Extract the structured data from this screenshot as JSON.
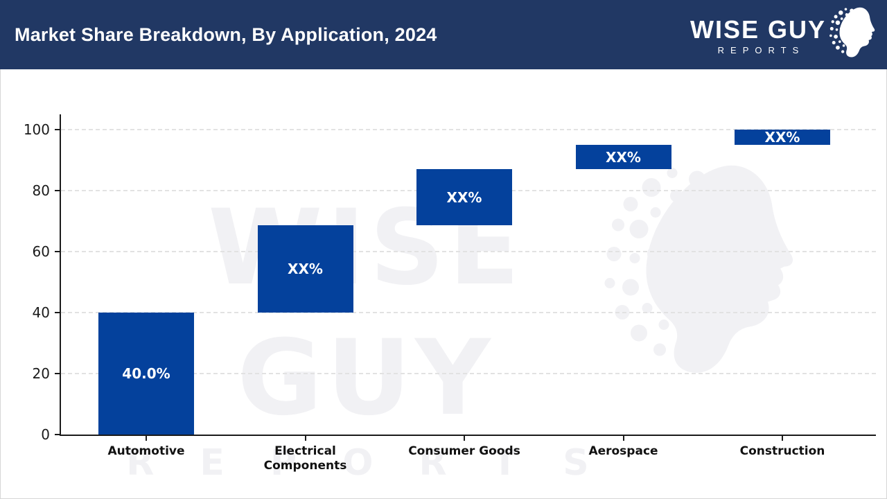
{
  "header": {
    "title": "Market Share Breakdown, By Application, 2024",
    "logo": {
      "line1": "WISE GUY",
      "line2": "REPORTS"
    },
    "background_color": "#213864",
    "text_color": "#ffffff"
  },
  "watermark": {
    "line1": "WISE GUY",
    "line2": "R E P O R T S",
    "color": "#f1f1f4"
  },
  "chart_data": {
    "type": "bar",
    "subtype": "waterfall",
    "title": "Market Share Breakdown, By Application, 2024",
    "categories": [
      "Automotive",
      "Electrical Components",
      "Consumer Goods",
      "Aerospace",
      "Construction"
    ],
    "segments": [
      {
        "category": "Automotive",
        "start": 0,
        "end": 40,
        "label": "40.0%"
      },
      {
        "category": "Electrical Components",
        "start": 40,
        "end": 68.6,
        "label": "XX%"
      },
      {
        "category": "Consumer Goods",
        "start": 68.6,
        "end": 87,
        "label": "XX%"
      },
      {
        "category": "Aerospace",
        "start": 87,
        "end": 95,
        "label": "XX%"
      },
      {
        "category": "Construction",
        "start": 95,
        "end": 100,
        "label": "XX%"
      }
    ],
    "y_ticks": [
      0,
      20,
      40,
      60,
      80,
      100
    ],
    "ylim": [
      0,
      105
    ],
    "xlabel": "",
    "ylabel": "",
    "grid": true,
    "gridline_style": "dashed",
    "gridline_color": "#e2e2e2",
    "bar_color": "#04419c",
    "bar_label_color": "#ffffff",
    "axis_color": "#1a1a1a",
    "legend": false
  }
}
